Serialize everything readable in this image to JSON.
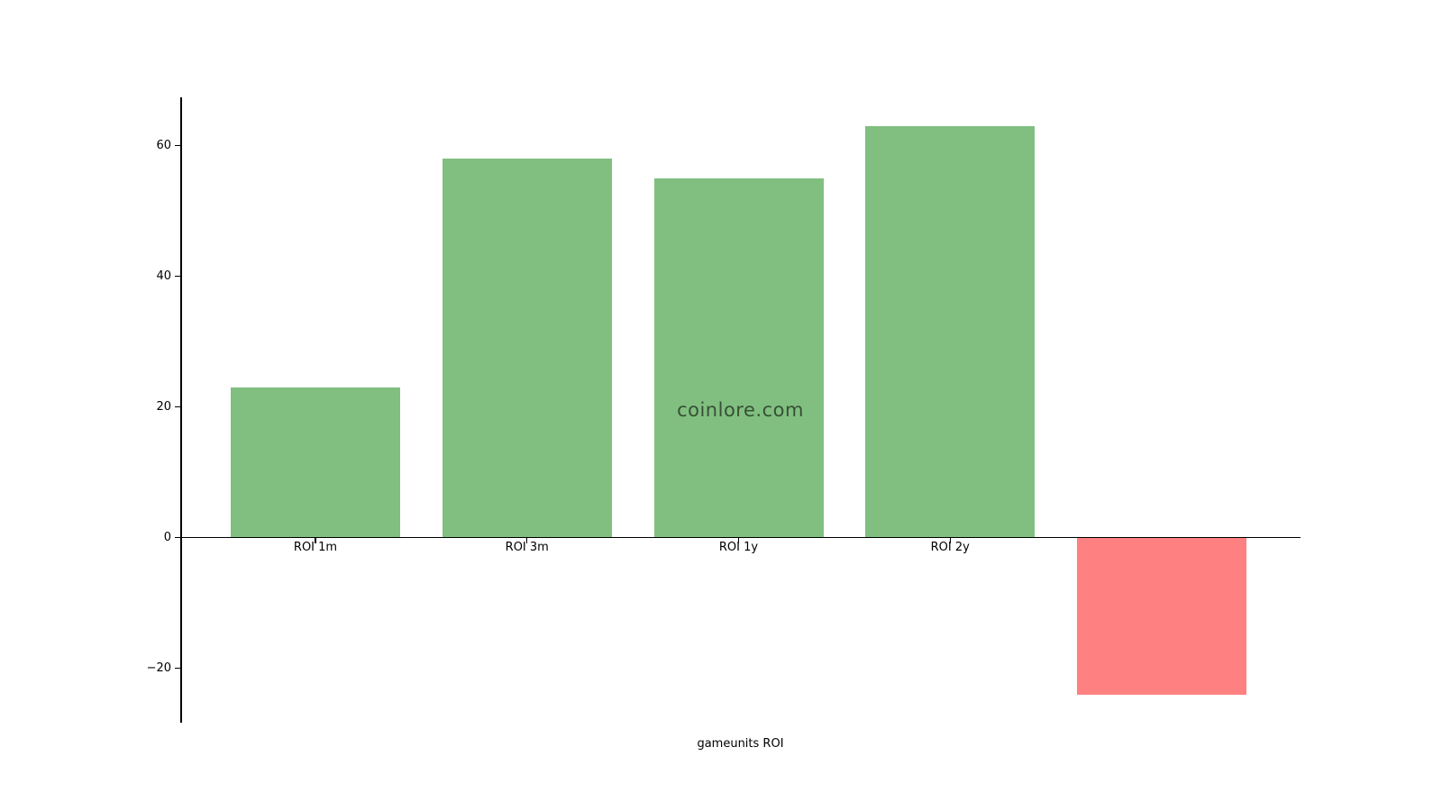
{
  "watermark": "coinlore.com",
  "chart_data": {
    "type": "bar",
    "title": "",
    "xlabel": "gameunits ROI",
    "ylabel": "",
    "categories": [
      "ROI 1m",
      "ROI 3m",
      "ROI 1y",
      "ROI 2y",
      ""
    ],
    "values": [
      23,
      58,
      55,
      63,
      -24
    ],
    "yticks": [
      {
        "value": 60,
        "label": "60"
      },
      {
        "value": 40,
        "label": "40"
      },
      {
        "value": 20,
        "label": "20"
      },
      {
        "value": 0,
        "label": "0"
      },
      {
        "value": -20,
        "label": "−20"
      }
    ],
    "ylim": [
      -28.35,
      67.35
    ],
    "grid": false,
    "legend": false,
    "colors": {
      "positive_bar": "#80bf80",
      "negative_bar": "#ff8080",
      "axis": "#000000",
      "tick_text": "#000000",
      "watermark_text": "rgba(0,0,0,0.58)"
    }
  }
}
